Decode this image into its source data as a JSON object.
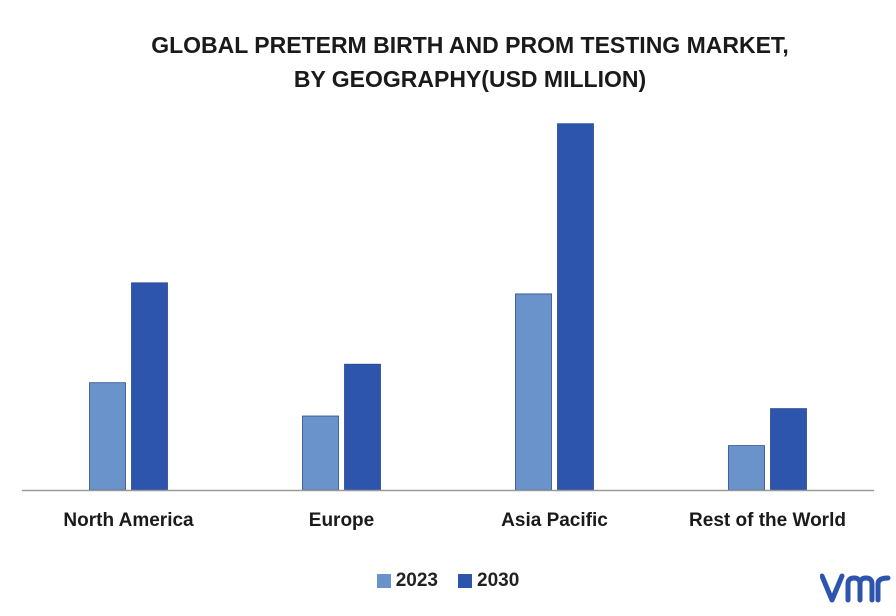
{
  "chart_data": {
    "type": "bar",
    "title": [
      "GLOBAL PRETERM BIRTH AND PROM TESTING MARKET,",
      "BY GEOGRAPHY(USD MILLION)"
    ],
    "categories": [
      "North America",
      "Europe",
      "Asia Pacific",
      "Rest of the World"
    ],
    "series": [
      {
        "name": "2023",
        "values": [
          29,
          20,
          53,
          12
        ],
        "color": "#6a93cc"
      },
      {
        "name": "2030",
        "values": [
          56,
          34,
          99,
          22
        ],
        "color": "#2d55ad"
      }
    ],
    "ylim": [
      0,
      100
    ],
    "grid": false,
    "legend": "bottom-center",
    "xlabel": "",
    "ylabel": ""
  },
  "brand": {
    "logo_icon": "vmr-logo-icon",
    "color": "#2d55ad"
  }
}
